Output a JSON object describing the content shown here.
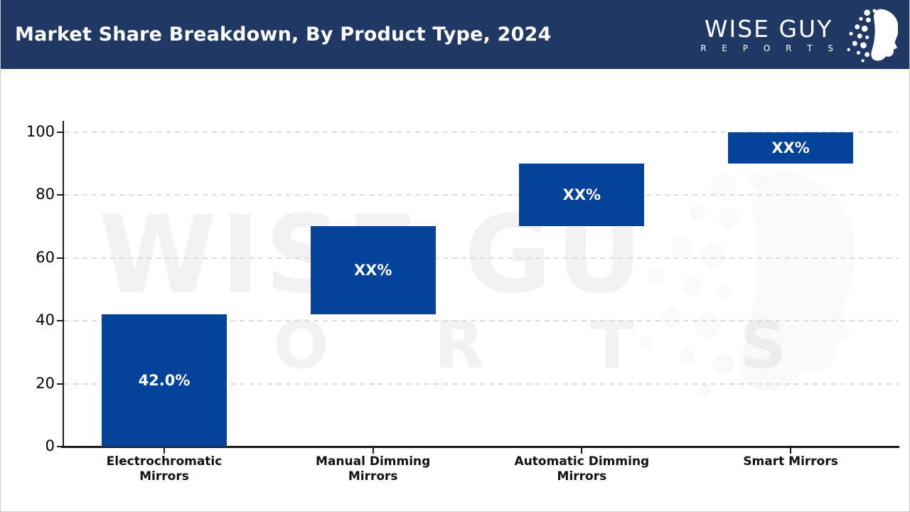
{
  "header": {
    "title": "Market Share Breakdown, By Product Type, 2024",
    "bg_color": "#1f3864",
    "logo": {
      "line1": "WISE GUY",
      "line2": "R E P O R T S"
    }
  },
  "watermark": {
    "line1": "WISE GU",
    "line2": "P O R T S"
  },
  "chart_data": {
    "type": "bar",
    "subtype": "waterfall",
    "title": "Market Share Breakdown, By Product Type, 2024",
    "categories": [
      "Electrochromatic\nMirrors",
      "Manual Dimming\nMirrors",
      "Automatic Dimming\nMirrors",
      "Smart Mirrors"
    ],
    "segments": [
      {
        "category": "Electrochromatic Mirrors",
        "start": 0,
        "end": 42,
        "label": "42.0%"
      },
      {
        "category": "Manual Dimming Mirrors",
        "start": 42,
        "end": 70,
        "label": "XX%"
      },
      {
        "category": "Automatic Dimming Mirrors",
        "start": 70,
        "end": 90,
        "label": "XX%"
      },
      {
        "category": "Smart Mirrors",
        "start": 90,
        "end": 100,
        "label": "XX%"
      }
    ],
    "xlabel": "",
    "ylabel": "",
    "ylim": [
      0,
      100
    ],
    "yticks": [
      0,
      20,
      40,
      60,
      80,
      100
    ],
    "bar_color": "#05429a",
    "grid": "horizontal-dashed",
    "legend": "none"
  }
}
